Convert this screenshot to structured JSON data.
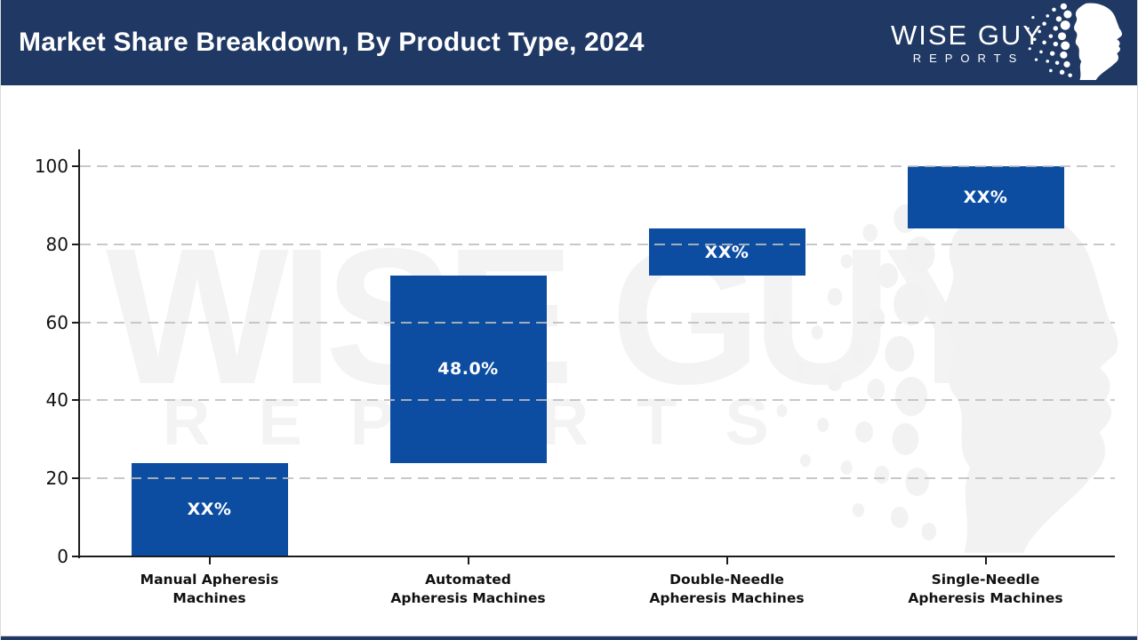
{
  "header": {
    "title": "Market Share Breakdown, By Product Type, 2024",
    "logo": {
      "name": "WISE GUY",
      "subtitle": "REPORTS",
      "face_icon": "dotted-face-profile"
    }
  },
  "watermark": {
    "name": "WISE GUY",
    "subtitle": "REPORTS",
    "face_icon": "dotted-face-profile"
  },
  "colors": {
    "header_navy": "#203964",
    "bar_blue": "#0c4da2",
    "bar_label_white": "#ffffff",
    "gridline_gray": "#c6c6c6",
    "axis_black": "#1c1c1c",
    "watermark_gray": "#f3f3f3"
  },
  "chart_data": {
    "type": "bar",
    "subtype": "waterfall",
    "title": "Market Share Breakdown, By Product Type, 2024",
    "categories": [
      "Manual Apheresis Machines",
      "Automated Apheresis Machines",
      "Double-Needle Apheresis Machines",
      "Single-Needle Apheresis Machines"
    ],
    "categories_lines": [
      [
        "Manual Apheresis",
        "Machines"
      ],
      [
        "Automated",
        "Apheresis Machines"
      ],
      [
        "Double-Needle",
        "Apheresis Machines"
      ],
      [
        "Single-Needle",
        "Apheresis Machines"
      ]
    ],
    "bars": [
      {
        "category": "Manual Apheresis Machines",
        "label": "XX%",
        "start": 0,
        "end": 24,
        "value": 24
      },
      {
        "category": "Automated Apheresis Machines",
        "label": "48.0%",
        "start": 24,
        "end": 72,
        "value": 48
      },
      {
        "category": "Double-Needle Apheresis Machines",
        "label": "XX%",
        "start": 72,
        "end": 84,
        "value": 12
      },
      {
        "category": "Single-Needle Apheresis Machines",
        "label": "XX%",
        "start": 84,
        "end": 100,
        "value": 16
      }
    ],
    "xlabel": "",
    "ylabel": "",
    "ylim": [
      0,
      100
    ],
    "yticks": [
      0,
      20,
      40,
      60,
      80,
      100
    ],
    "grid": "horizontal-dashed",
    "legend": "none"
  }
}
